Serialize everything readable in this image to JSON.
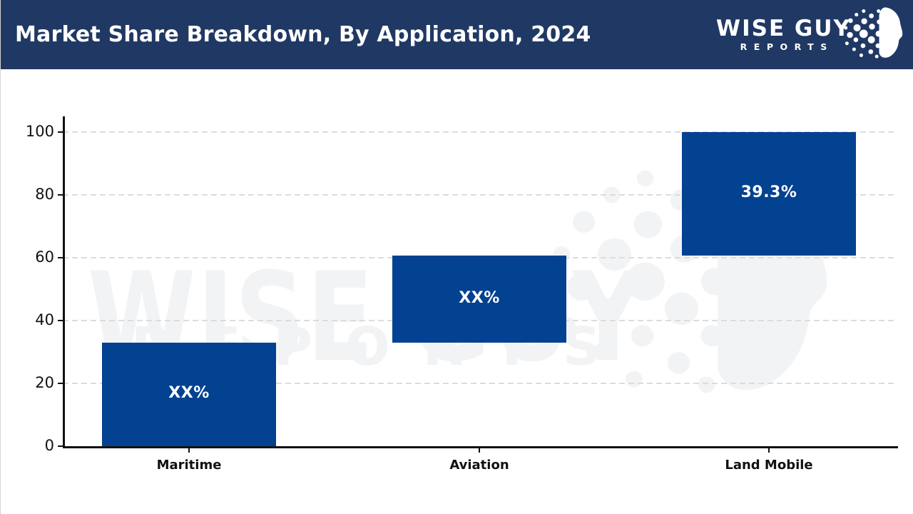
{
  "header": {
    "title": "Market Share Breakdown, By Application, 2024",
    "logo": {
      "line1": "WISE GUY",
      "line2": "REPORTS"
    }
  },
  "watermark": {
    "line1": "WISE GUY",
    "line2": "REPORTS"
  },
  "colors": {
    "header_bg": "#203864",
    "bar": "#034191",
    "grid": "#dcdcdc",
    "axis": "#111111",
    "watermark": "#f2f3f5",
    "bar_label_text": "#ffffff"
  },
  "chart_data": {
    "type": "bar",
    "subtype": "waterfall-floating-bars",
    "title": "Market Share Breakdown, By Application, 2024",
    "categories": [
      "Maritime",
      "Aviation",
      "Land Mobile"
    ],
    "segments": [
      {
        "category": "Maritime",
        "start": 0,
        "end": 33.0,
        "label": "XX%"
      },
      {
        "category": "Aviation",
        "start": 33.0,
        "end": 60.7,
        "label": "XX%"
      },
      {
        "category": "Land Mobile",
        "start": 60.7,
        "end": 100,
        "label": "39.3%"
      }
    ],
    "ylim": [
      0,
      100
    ],
    "yticks": [
      0,
      20,
      40,
      60,
      80,
      100
    ],
    "grid": "horizontal-dashed",
    "legend": "none",
    "bar_color": "#034191"
  }
}
